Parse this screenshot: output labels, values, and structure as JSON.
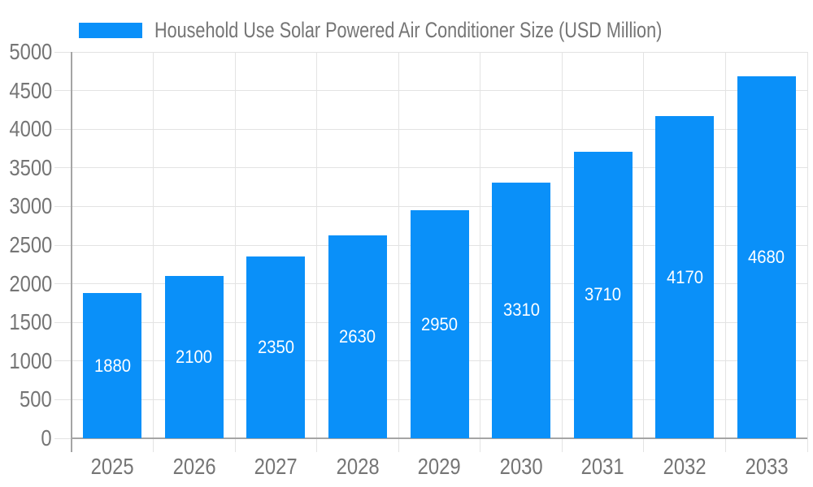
{
  "chart_data": {
    "type": "bar",
    "title": "Household Use Solar Powered Air Conditioner Size (USD Million)",
    "categories": [
      "2025",
      "2026",
      "2027",
      "2028",
      "2029",
      "2030",
      "2031",
      "2032",
      "2033"
    ],
    "values": [
      1880,
      2100,
      2350,
      2630,
      2950,
      3310,
      3710,
      4170,
      4680
    ],
    "value_labels": [
      "1880",
      "2100",
      "2350",
      "2630",
      "2950",
      "3310",
      "3710",
      "4170",
      "4680"
    ],
    "yticks": [
      0,
      500,
      1000,
      1500,
      2000,
      2500,
      3000,
      3500,
      4000,
      4500,
      5000
    ],
    "ylim": [
      0,
      5000
    ],
    "xlabel": "",
    "ylabel": "",
    "grid": true,
    "legend_position": "top-left",
    "colors": {
      "bar": "#0a90f9",
      "bar_label": "#ffffff",
      "grid_line": "#e3e3e3",
      "axis_line": "#a5a5a5",
      "tick_label": "#757575",
      "title_text": "#757575",
      "background": "#ffffff"
    }
  }
}
